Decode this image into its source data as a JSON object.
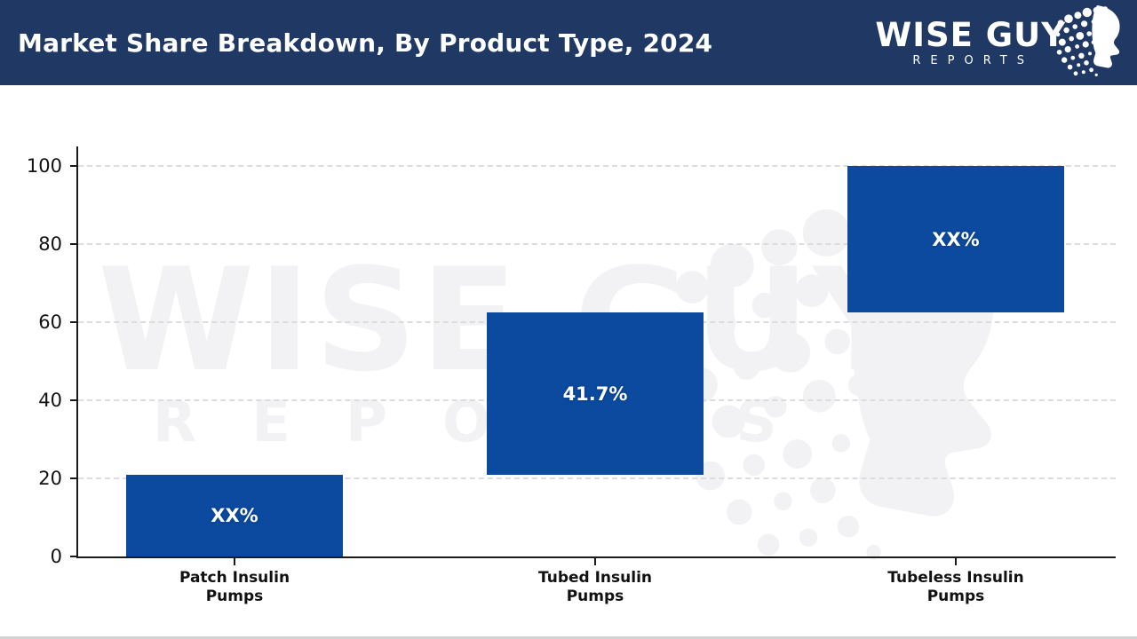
{
  "header": {
    "title": "Market Share Breakdown, By Product Type, 2024",
    "logo": {
      "wordmark": "WISE GUY",
      "subtext": "REPORTS"
    }
  },
  "watermark": {
    "wordmark": "WISE GUY",
    "subtext": "REPORTS"
  },
  "chart_data": {
    "type": "bar",
    "subtype": "floating-segment-waterfall",
    "title": "Market Share Breakdown, By Product Type, 2024",
    "categories": [
      "Patch Insulin Pumps",
      "Tubed Insulin Pumps",
      "Tubeless Insulin Pumps"
    ],
    "segments": [
      {
        "category": "Patch Insulin Pumps",
        "start": 0,
        "end": 20.8,
        "label": "XX%"
      },
      {
        "category": "Tubed Insulin Pumps",
        "start": 20.8,
        "end": 62.5,
        "label": "41.7%"
      },
      {
        "category": "Tubeless Insulin Pumps",
        "start": 62.5,
        "end": 100,
        "label": "XX%"
      }
    ],
    "xlabel": "",
    "ylabel": "",
    "ylim": [
      0,
      100
    ],
    "yticks": [
      0,
      20,
      40,
      60,
      80,
      100
    ],
    "grid": true,
    "gridline_style": "dashed",
    "legend": "none",
    "bar_color": "#0b4a9e",
    "bar_label_color": "#ffffff",
    "axis_color": "#1a1a1a",
    "header_color": "#1f3864",
    "watermark_color": "#f2f2f4"
  }
}
